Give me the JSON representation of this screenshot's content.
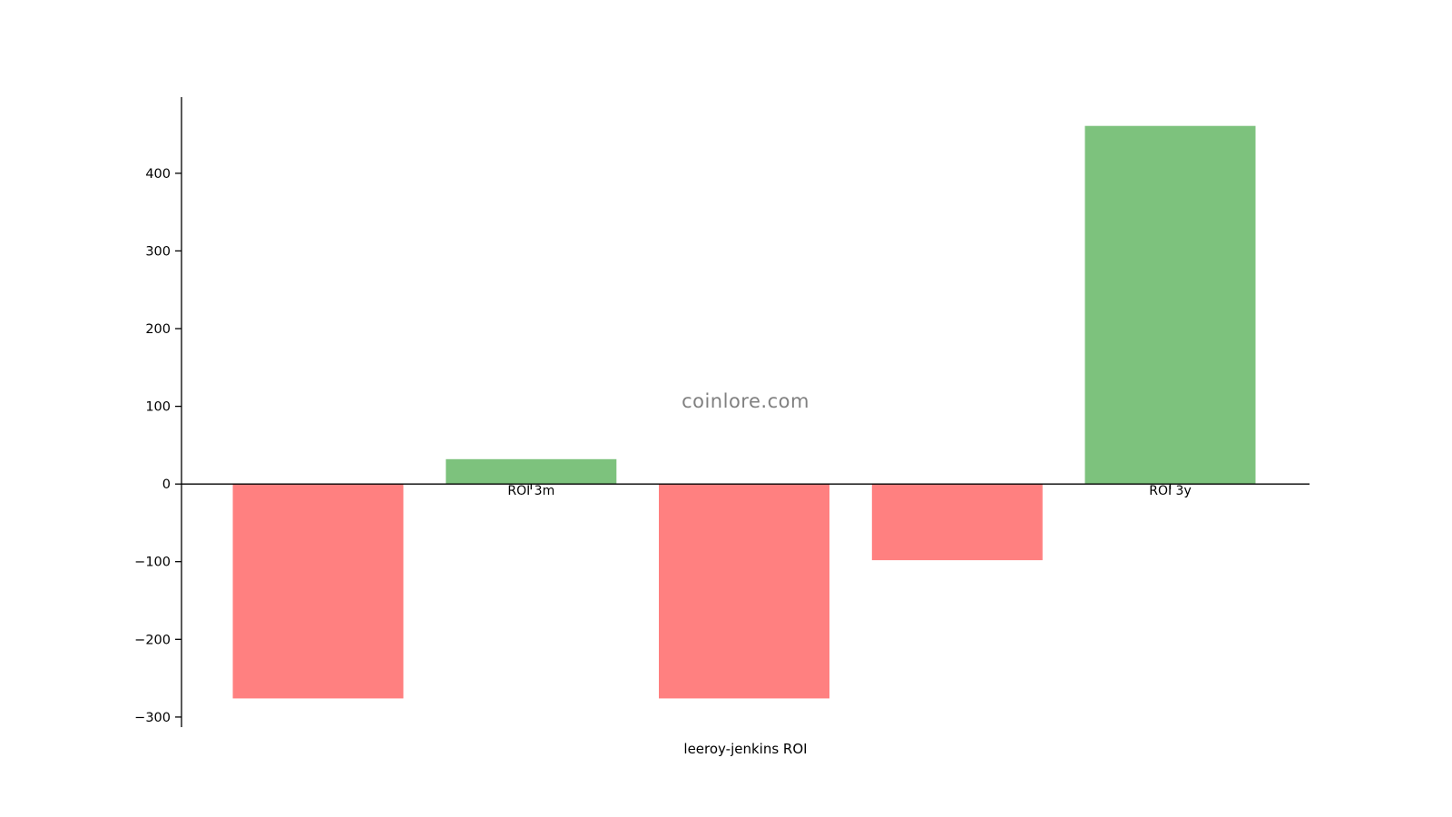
{
  "chart_data": {
    "type": "bar",
    "title": "",
    "xlabel": "leeroy-jenkins ROI",
    "ylabel": "",
    "categories": [
      "",
      "ROI 3m",
      "",
      "",
      "ROI 3y"
    ],
    "values": [
      -276,
      32,
      -276,
      -98,
      461
    ],
    "bar_colors": [
      "#ff8080",
      "#7dc27d",
      "#ff8080",
      "#ff8080",
      "#7dc27d"
    ],
    "positive_color": "#7dc27d",
    "negative_color": "#ff8080",
    "yticks": [
      -300,
      -200,
      -100,
      0,
      100,
      200,
      300,
      400
    ],
    "ylim": [
      -313,
      498
    ],
    "grid": false,
    "legend": "none",
    "axis_color": "#000000",
    "tick_label_color": "#000000",
    "watermark": "coinlore.com",
    "watermark_color": "#808080"
  }
}
